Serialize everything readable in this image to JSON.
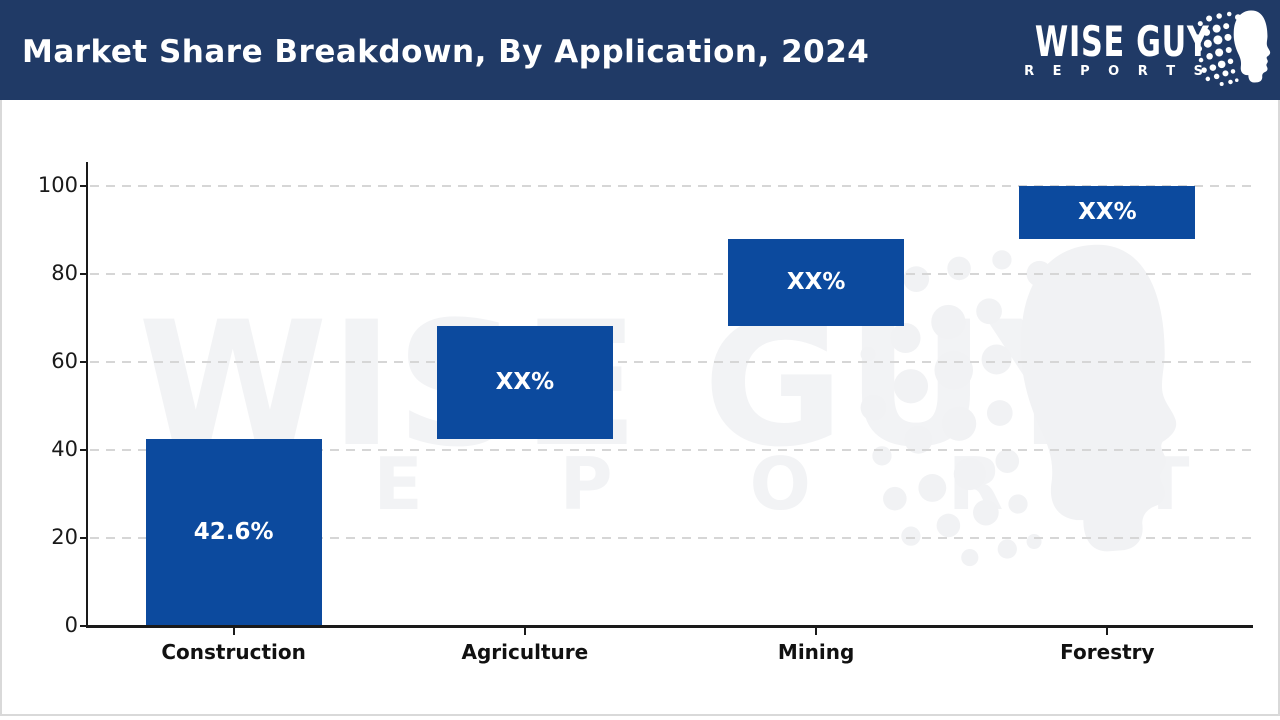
{
  "header": {
    "title": "Market Share Breakdown, By Application, 2024",
    "logo": {
      "line1": "WISE GUY",
      "line2": "R E P O R T S"
    }
  },
  "watermark": {
    "line1": "WISE GUY",
    "line2": "R E P O R T S"
  },
  "chart_data": {
    "type": "bar",
    "subtype": "waterfall",
    "title": "Market Share Breakdown, By Application, 2024",
    "categories": [
      "Construction",
      "Agriculture",
      "Mining",
      "Forestry"
    ],
    "segments": [
      {
        "category": "Construction",
        "start": 0,
        "end": 42.6,
        "label": "42.6%"
      },
      {
        "category": "Agriculture",
        "start": 42.6,
        "end": 68.2,
        "label": "XX%"
      },
      {
        "category": "Mining",
        "start": 68.2,
        "end": 88.0,
        "label": "XX%"
      },
      {
        "category": "Forestry",
        "start": 88.0,
        "end": 100.0,
        "label": "XX%"
      }
    ],
    "yticks": [
      0,
      20,
      40,
      60,
      80,
      100
    ],
    "ylim": [
      0,
      105
    ],
    "xlabel": "",
    "ylabel": "",
    "grid": "horizontal-dashed",
    "legend": "none",
    "colors": {
      "bar": "#0c4a9e",
      "bar_label": "#ffffff",
      "axis": "#1a1a1a",
      "gridline": "#d6d6d6",
      "header_bg": "#203a66",
      "header_text": "#ffffff",
      "watermark": "#f2f3f5"
    }
  }
}
